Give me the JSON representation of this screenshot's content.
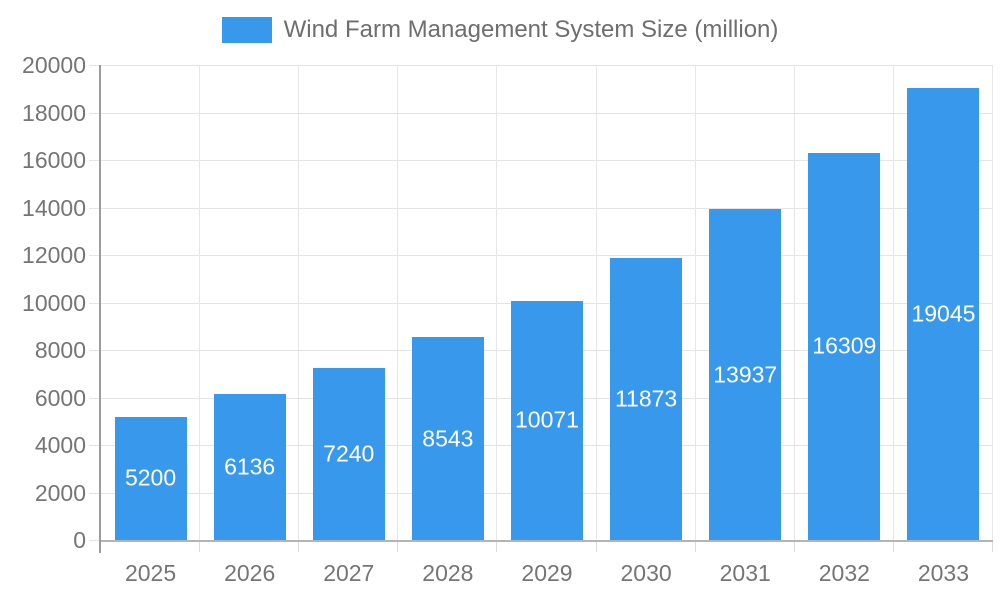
{
  "legend": {
    "label": "Wind Farm Management System Size (million)"
  },
  "colors": {
    "bar": "#3898ec",
    "bar_value_text": "#ffffff",
    "tick_text": "#757575",
    "title_text": "#6e6e6e",
    "gridline": "#e4e4e4",
    "y_axis_line": "#9c9c9c",
    "x_axis_line": "#b4b4b4",
    "background": "#ffffff"
  },
  "chart_data": {
    "type": "bar",
    "title": "Wind Farm Management System Size (million)",
    "series_name": "Wind Farm Management System Size (million)",
    "categories": [
      "2025",
      "2026",
      "2027",
      "2028",
      "2029",
      "2030",
      "2031",
      "2032",
      "2033"
    ],
    "values": [
      5200,
      6136,
      7240,
      8543,
      10071,
      11873,
      13937,
      16309,
      19045
    ],
    "value_labels_visible": true,
    "value_label_position": "inside-center",
    "xlabel": "",
    "ylabel": "",
    "ylim": [
      0,
      20000
    ],
    "yticks": [
      0,
      2000,
      4000,
      6000,
      8000,
      10000,
      12000,
      14000,
      16000,
      18000,
      20000
    ],
    "grid": true,
    "legend_position": "top-center",
    "bar_color": "#3898ec"
  }
}
